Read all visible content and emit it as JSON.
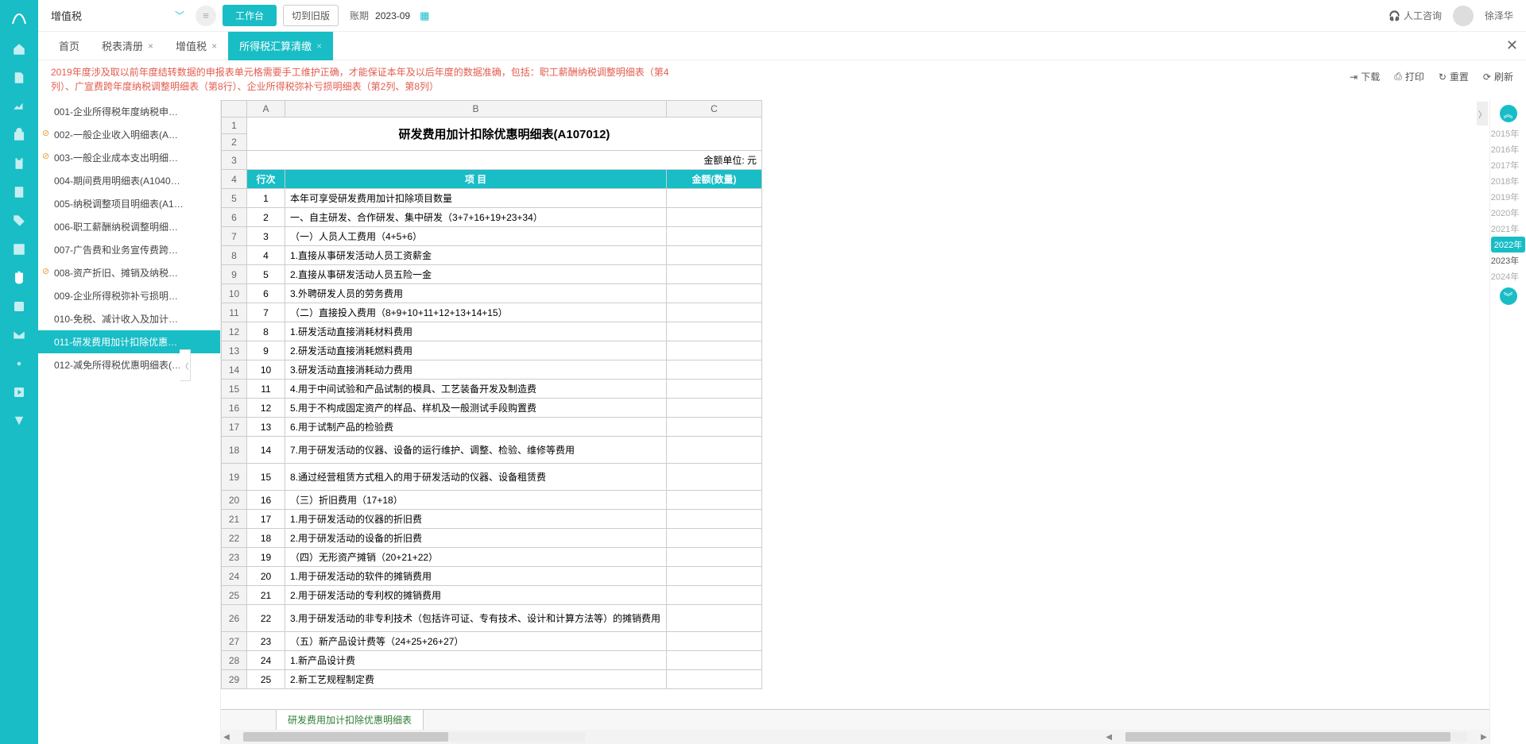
{
  "header": {
    "dropdown_label": "增值税",
    "workbench_btn": "工作台",
    "switch_old_btn": "切到旧版",
    "period_label": "账期",
    "period_value": "2023-09",
    "consult": "人工咨询",
    "username": "徐泽华"
  },
  "tabs": [
    {
      "label": "首页",
      "closable": false
    },
    {
      "label": "税表清册",
      "closable": true
    },
    {
      "label": "增值税",
      "closable": true
    },
    {
      "label": "所得税汇算清缴",
      "closable": true,
      "active": true
    }
  ],
  "notice": "2019年度涉及取以前年度结转数据的申报表单元格需要手工维护正确，才能保证本年及以后年度的数据准确，包括：职工薪酬纳税调整明细表（第4列）、广宣费跨年度纳税调整明细表（第8行）、企业所得税弥补亏损明细表（第2列、第8列）",
  "toolbar": {
    "download": "下载",
    "print": "打印",
    "reset": "重置",
    "refresh": "刷新"
  },
  "formList": [
    {
      "label": "001-企业所得税年度纳税申…"
    },
    {
      "label": "002-一般企业收入明细表(A…",
      "warn": true
    },
    {
      "label": "003-一般企业成本支出明细…",
      "warn": true
    },
    {
      "label": "004-期间费用明细表(A1040…"
    },
    {
      "label": "005-纳税调整项目明细表(A1…"
    },
    {
      "label": "006-职工薪酬纳税调整明细…"
    },
    {
      "label": "007-广告费和业务宣传费跨…"
    },
    {
      "label": "008-资产折旧、摊销及纳税…",
      "warn": true
    },
    {
      "label": "009-企业所得税弥补亏损明…"
    },
    {
      "label": "010-免税、减计收入及加计…"
    },
    {
      "label": "011-研发费用加计扣除优惠…",
      "active": true
    },
    {
      "label": "012-减免所得税优惠明细表(…"
    }
  ],
  "sheet": {
    "title": "研发费用加计扣除优惠明细表(A107012)",
    "unit": "金额单位: 元",
    "colHeaders": [
      "A",
      "B",
      "C"
    ],
    "th": {
      "a": "行次",
      "b": "项    目",
      "c": "金额(数量)"
    },
    "rows": [
      {
        "n": "1",
        "b": "本年可享受研发费用加计扣除项目数量"
      },
      {
        "n": "2",
        "b": "一、自主研发、合作研发、集中研发（3+7+16+19+23+34）"
      },
      {
        "n": "3",
        "b": "（一）人员人工费用（4+5+6）"
      },
      {
        "n": "4",
        "b": "1.直接从事研发活动人员工资薪金"
      },
      {
        "n": "5",
        "b": "2.直接从事研发活动人员五险一金"
      },
      {
        "n": "6",
        "b": "3.外聘研发人员的劳务费用"
      },
      {
        "n": "7",
        "b": "（二）直接投入费用（8+9+10+11+12+13+14+15）"
      },
      {
        "n": "8",
        "b": "1.研发活动直接消耗材料费用"
      },
      {
        "n": "9",
        "b": "2.研发活动直接消耗燃料费用"
      },
      {
        "n": "10",
        "b": "3.研发活动直接消耗动力费用"
      },
      {
        "n": "11",
        "b": "4.用于中间试验和产品试制的模具、工艺装备开发及制造费"
      },
      {
        "n": "12",
        "b": "5.用于不构成固定资产的样品、样机及一般测试手段购置费"
      },
      {
        "n": "13",
        "b": "6.用于试制产品的检验费"
      },
      {
        "n": "14",
        "b": "7.用于研发活动的仪器、设备的运行维护、调整、检验、维修等费用",
        "tall": true
      },
      {
        "n": "15",
        "b": "8.通过经营租赁方式租入的用于研发活动的仪器、设备租赁费",
        "tall": true
      },
      {
        "n": "16",
        "b": "（三）折旧费用（17+18）"
      },
      {
        "n": "17",
        "b": "1.用于研发活动的仪器的折旧费"
      },
      {
        "n": "18",
        "b": "2.用于研发活动的设备的折旧费"
      },
      {
        "n": "19",
        "b": "（四）无形资产摊销（20+21+22）"
      },
      {
        "n": "20",
        "b": "1.用于研发活动的软件的摊销费用"
      },
      {
        "n": "21",
        "b": "2.用于研发活动的专利权的摊销费用"
      },
      {
        "n": "22",
        "b": "3.用于研发活动的非专利技术（包括许可证、专有技术、设计和计算方法等）的摊销费用",
        "tall": true
      },
      {
        "n": "23",
        "b": "（五）新产品设计费等（24+25+26+27）"
      },
      {
        "n": "24",
        "b": "1.新产品设计费"
      },
      {
        "n": "25",
        "b": "2.新工艺规程制定费"
      }
    ],
    "tabLabel": "研发费用加计扣除优惠明细表"
  },
  "years": {
    "list": [
      {
        "y": "2015年"
      },
      {
        "y": "2016年"
      },
      {
        "y": "2017年"
      },
      {
        "y": "2018年"
      },
      {
        "y": "2019年"
      },
      {
        "y": "2020年"
      },
      {
        "y": "2021年"
      },
      {
        "y": "2022年",
        "active": true
      },
      {
        "y": "2023年",
        "avail": true
      },
      {
        "y": "2024年"
      }
    ]
  }
}
